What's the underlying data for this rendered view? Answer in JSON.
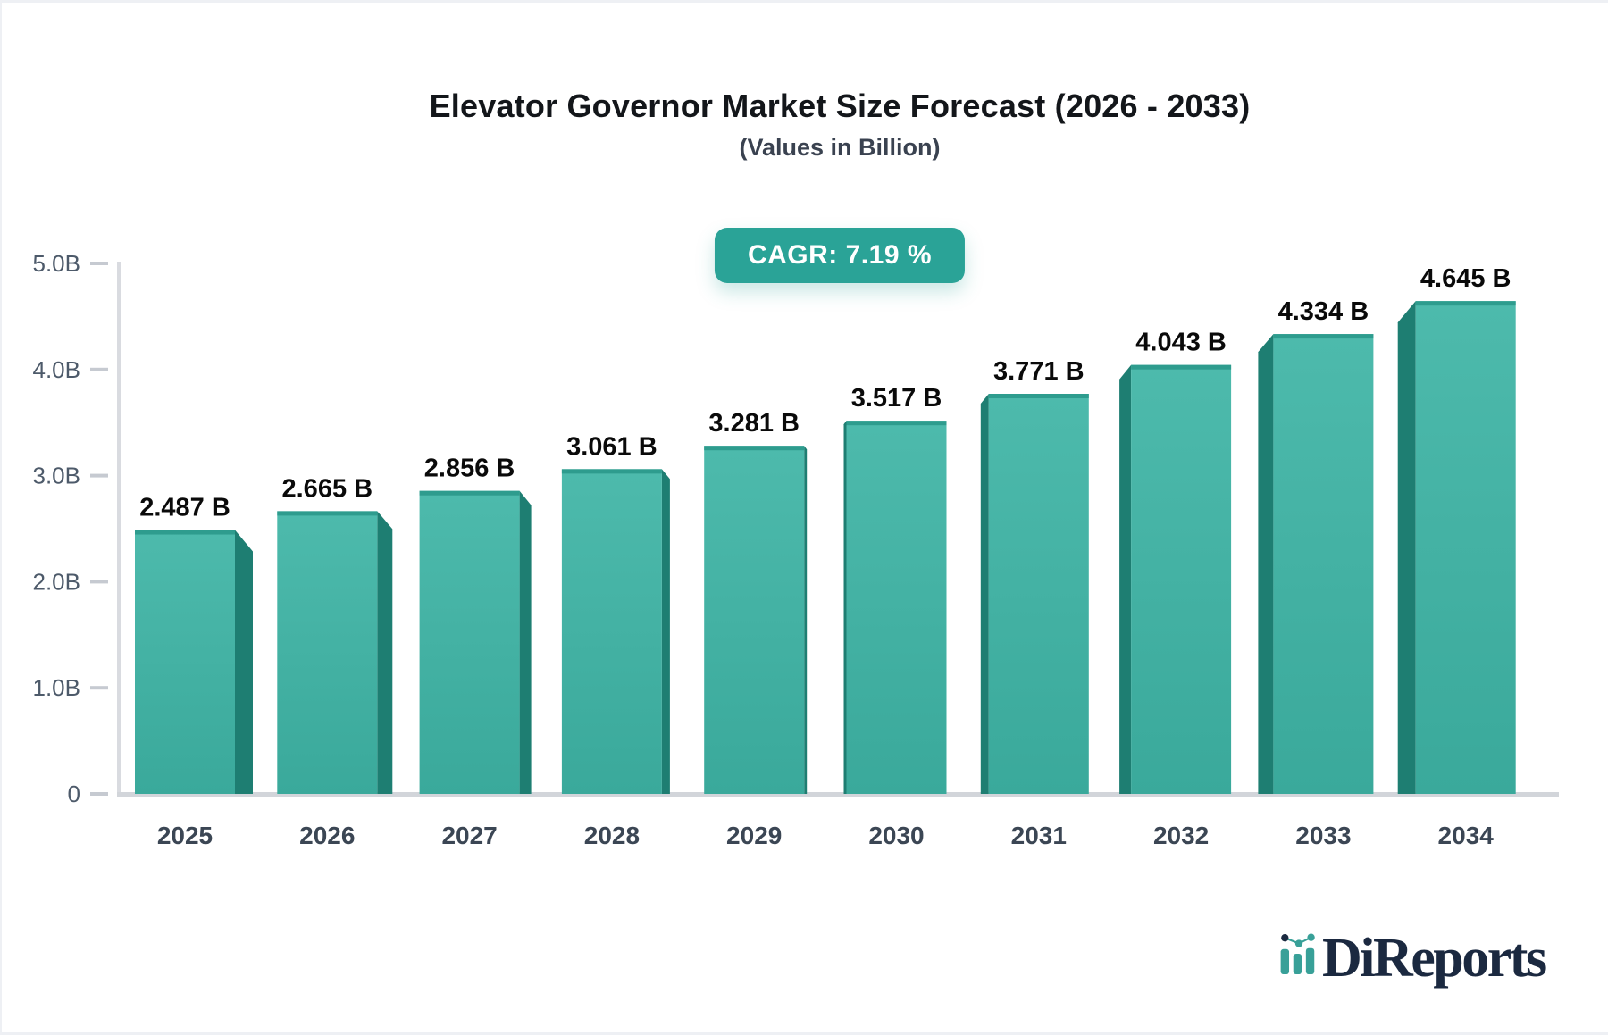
{
  "brand": {
    "name": "DiReports"
  },
  "colors": {
    "accent_teal": "#2aa397",
    "bar_face_top": "#4dbaac",
    "bar_face_bottom": "#3aa99b",
    "bar_side": "#1e7e72",
    "bar_top_cap": "#2e9c8e",
    "axis_line": "#d9dbe0",
    "baseline": "#d2d5da",
    "tick_dash": "#c6cad1",
    "y_label": "#4d5a6a",
    "x_label": "#3b4654",
    "value_label": "#0a0a0a",
    "logo_navy": "#1b2940",
    "logo_teal": "#38a098"
  },
  "chart_data": {
    "type": "bar",
    "style": "3d-bars",
    "title": "Elevator Governor Market Size Forecast (2026 - 2033)",
    "subtitle": "(Values in Billion)",
    "annotation": "CAGR: 7.19 %",
    "categories": [
      "2025",
      "2026",
      "2027",
      "2028",
      "2029",
      "2030",
      "2031",
      "2032",
      "2033",
      "2034"
    ],
    "values": [
      2.487,
      2.665,
      2.856,
      3.061,
      3.281,
      3.517,
      3.771,
      4.043,
      4.334,
      4.645
    ],
    "value_labels": [
      "2.487 B",
      "2.665 B",
      "2.856 B",
      "3.061 B",
      "3.281 B",
      "3.517 B",
      "3.771 B",
      "4.043 B",
      "4.334 B",
      "4.645 B"
    ],
    "xlabel": "",
    "ylabel": "",
    "ylim": [
      0,
      5
    ],
    "yticks": [
      {
        "value": 5.0,
        "label": "5.0B"
      },
      {
        "value": 4.0,
        "label": "4.0B"
      },
      {
        "value": 3.0,
        "label": "3.0B"
      },
      {
        "value": 2.0,
        "label": "2.0B"
      },
      {
        "value": 1.0,
        "label": "1.0B"
      },
      {
        "value": 0,
        "label": "0"
      }
    ],
    "grid": false,
    "legend": false
  }
}
